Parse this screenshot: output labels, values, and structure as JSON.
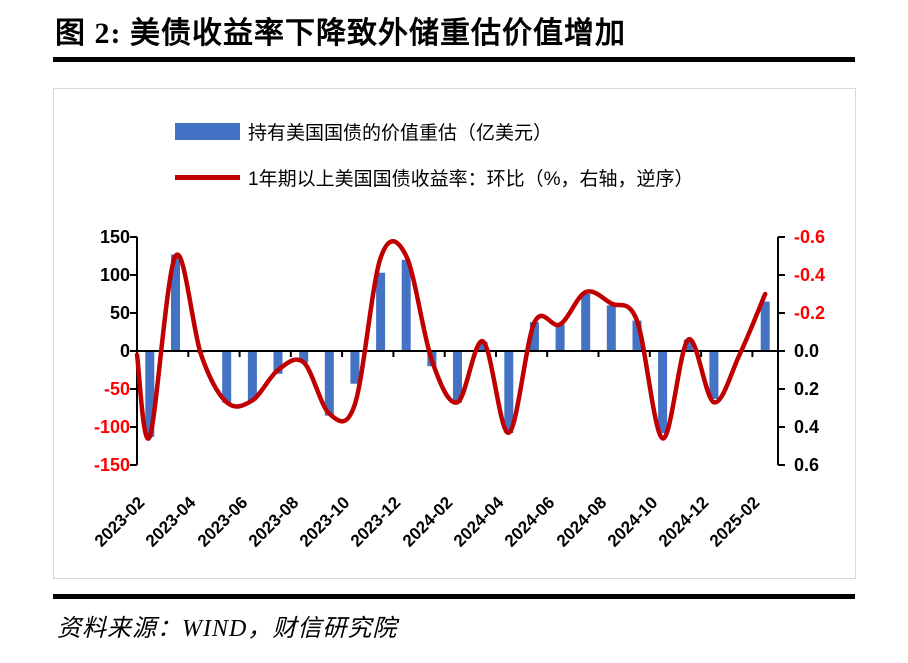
{
  "title": "图 2:  美债收益率下降致外储重估价值增加",
  "source": "资料来源：WIND，财信研究院",
  "legend": {
    "bar_label": "持有美国国债的价值重估（亿美元）",
    "line_label": "1年期以上美国国债收益率：环比（%，右轴，逆序）"
  },
  "colors": {
    "bar_series": "#4472C4",
    "line_series": "#C00000",
    "negative_tick_label": "#FF0000",
    "positive_tick_label": "#000000",
    "axis_line": "#000000",
    "chart_border": "#D9D9D9"
  },
  "chart_data": {
    "type": "bar+line dual-axis, right axis inverted",
    "categories": [
      "2023-02",
      "2023-03",
      "2023-04",
      "2023-05",
      "2023-06",
      "2023-07",
      "2023-08",
      "2023-09",
      "2023-10",
      "2023-11",
      "2023-12",
      "2024-01",
      "2024-02",
      "2024-03",
      "2024-04",
      "2024-05",
      "2024-06",
      "2024-07",
      "2024-08",
      "2024-09",
      "2024-10",
      "2024-11",
      "2024-12",
      "2025-01",
      "2025-02"
    ],
    "series": [
      {
        "name": "持有美国国债的价值重估（亿美元）",
        "type": "bar",
        "axis": "left",
        "values": [
          -113,
          127,
          -2,
          -68,
          -65,
          -30,
          -15,
          -85,
          -43,
          103,
          120,
          -20,
          -68,
          12,
          -108,
          38,
          35,
          75,
          60,
          40,
          -108,
          15,
          -63,
          0,
          65
        ]
      },
      {
        "name": "1年期以上美国国债收益率：环比（%，右轴，逆序）",
        "type": "line",
        "axis": "right",
        "values": [
          0.45,
          -0.5,
          0.02,
          0.27,
          0.26,
          0.1,
          0.06,
          0.33,
          0.28,
          -0.49,
          -0.5,
          0.05,
          0.27,
          -0.05,
          0.43,
          -0.15,
          -0.14,
          -0.31,
          -0.25,
          -0.16,
          0.46,
          -0.06,
          0.27,
          0.02,
          -0.3
        ]
      }
    ],
    "left_axis": {
      "ticks": [
        "150",
        "100",
        "50",
        "0",
        "-50",
        "-100",
        "-150"
      ],
      "lim": [
        -150,
        150
      ]
    },
    "right_axis": {
      "ticks": [
        "-0.6",
        "-0.4",
        "-0.2",
        "0.0",
        "0.2",
        "0.4",
        "0.6"
      ],
      "lim": [
        -0.6,
        0.6
      ],
      "inverted": true
    },
    "x_tick_labels": [
      "2023-02",
      "2023-04",
      "2023-06",
      "2023-08",
      "2023-10",
      "2023-12",
      "2024-02",
      "2024-04",
      "2024-06",
      "2024-08",
      "2024-10",
      "2024-12",
      "2025-02"
    ],
    "grid": "off",
    "legend_position": "top-left inside plot"
  }
}
